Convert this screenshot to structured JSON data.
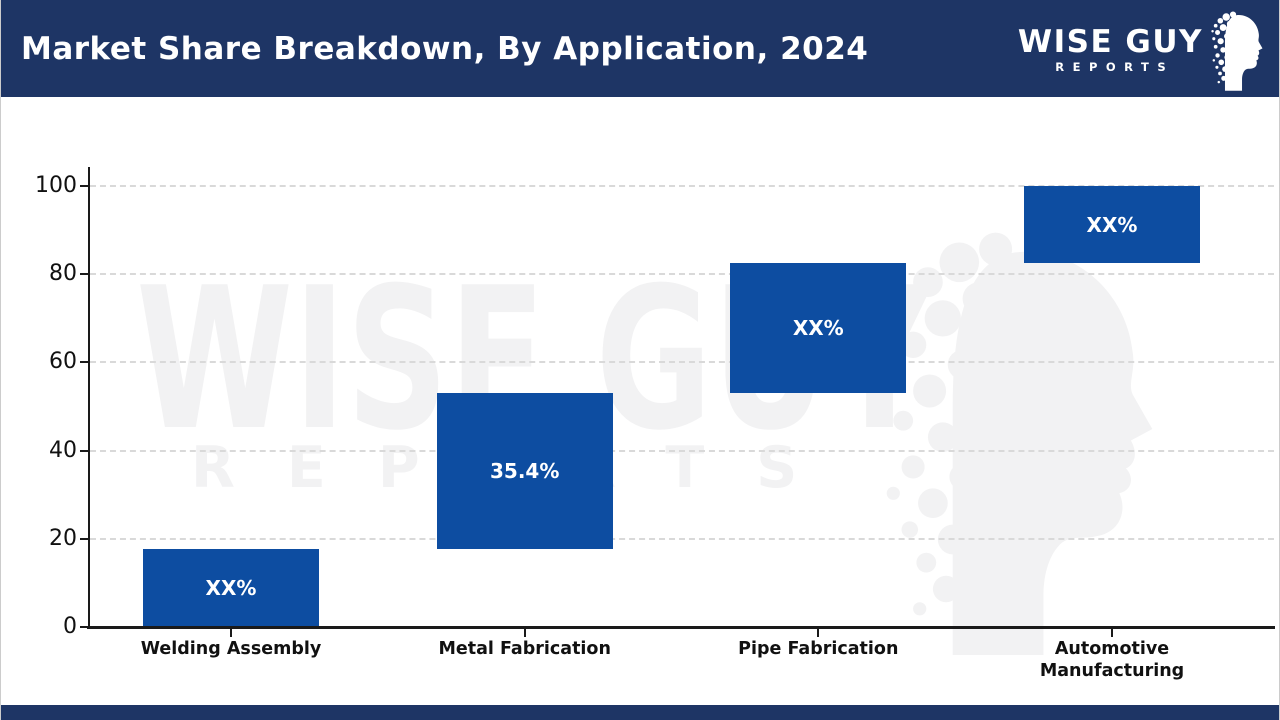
{
  "header": {
    "title": "Market Share Breakdown, By Application, 2024",
    "logo": {
      "line1": "WISE GUY",
      "line2": "REPORTS"
    }
  },
  "watermark": {
    "line1": "WISE GUY",
    "line2": "REPORTS"
  },
  "colors": {
    "header_bg": "#1e3565",
    "footer_bg": "#1e3565",
    "bar": "#0d4da1",
    "bar_label": "#ffffff",
    "gridline": "#d9d9d9",
    "axis": "#1a1a1a",
    "watermark": "#f2f2f3"
  },
  "chart_data": {
    "type": "bar",
    "subtype": "waterfall-floating-bars",
    "title": "Market Share Breakdown, By Application, 2024",
    "xlabel": "",
    "ylabel": "",
    "categories": [
      "Welding Assembly",
      "Metal Fabrication",
      "Pipe Fabrication",
      "Automotive Manufacturing"
    ],
    "segments": [
      {
        "category": "Welding Assembly",
        "start": 0,
        "end": 17.6,
        "value": 17.6,
        "label": "XX%"
      },
      {
        "category": "Metal Fabrication",
        "start": 17.6,
        "end": 53.0,
        "value": 35.4,
        "label": "35.4%"
      },
      {
        "category": "Pipe Fabrication",
        "start": 53.0,
        "end": 82.5,
        "value": 29.5,
        "label": "XX%"
      },
      {
        "category": "Automotive Manufacturing",
        "start": 82.5,
        "end": 100,
        "value": 17.5,
        "label": "XX%"
      }
    ],
    "y_ticks": [
      0,
      20,
      40,
      60,
      80,
      100
    ],
    "ylim": [
      0,
      104
    ],
    "grid": "horizontal-dashed",
    "legend": "none"
  }
}
